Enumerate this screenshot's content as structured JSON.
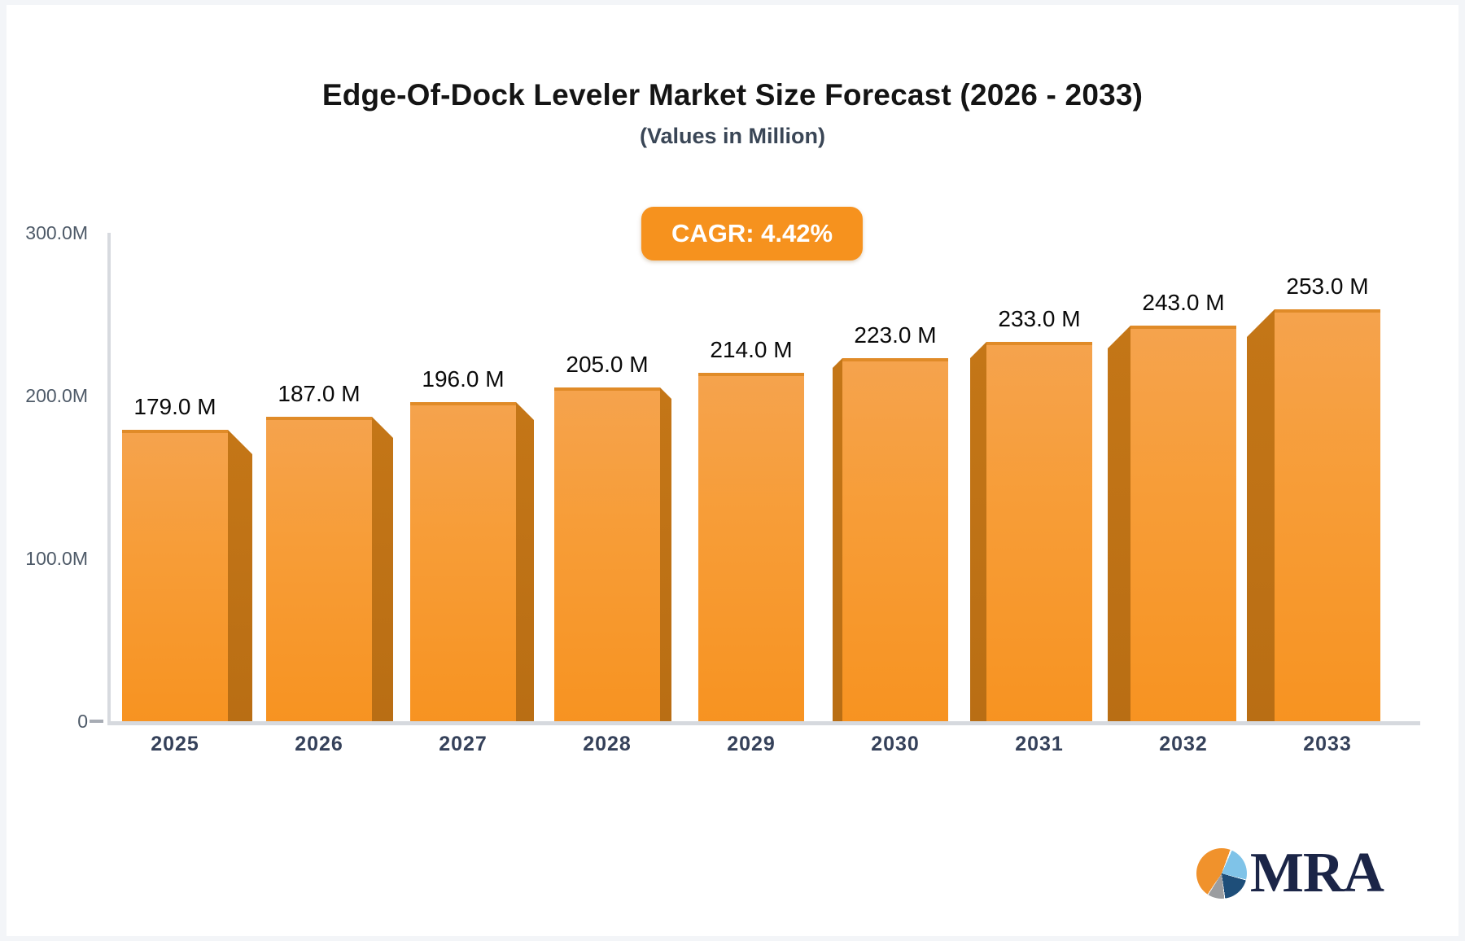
{
  "header": {
    "title": "Edge-Of-Dock Leveler Market Size Forecast (2026 - 2033)",
    "subtitle": "(Values in Million)"
  },
  "badge": {
    "label": "CAGR: 4.42%",
    "bg": "#f6921e",
    "text_color": "#ffffff"
  },
  "chart_data": {
    "type": "bar",
    "title": "Edge-Of-Dock Leveler Market Size Forecast (2026 - 2033)",
    "subtitle": "(Values in Million)",
    "unit": "Million",
    "cagr_label": "CAGR: 4.42%",
    "categories": [
      "2025",
      "2026",
      "2027",
      "2028",
      "2029",
      "2030",
      "2031",
      "2032",
      "2033"
    ],
    "values": [
      179,
      187,
      196,
      205,
      214,
      223,
      233,
      243,
      253
    ],
    "value_labels": [
      "179.0 M",
      "187.0 M",
      "196.0 M",
      "205.0 M",
      "214.0 M",
      "223.0 M",
      "233.0 M",
      "243.0 M",
      "253.0 M"
    ],
    "ylim": [
      0,
      300
    ],
    "yticks": [
      0,
      100,
      200,
      300
    ],
    "ytick_labels": [
      "0",
      "100.0M",
      "200.0M",
      "300.0M"
    ],
    "grid": false,
    "legend": "none",
    "bar_color_top": "#f5a34d",
    "bar_color_bottom": "#f79321",
    "bar_side_color": "#b96e14",
    "axis_color": "#d7dadf",
    "style": "3d-perspective-bars"
  },
  "logo": {
    "text": "MRA",
    "pie_colors": {
      "orange": "#f0922c",
      "light_blue": "#7fc3e8",
      "navy": "#1e4e79",
      "gray": "#9b9da0"
    },
    "text_color": "#1b2547"
  }
}
